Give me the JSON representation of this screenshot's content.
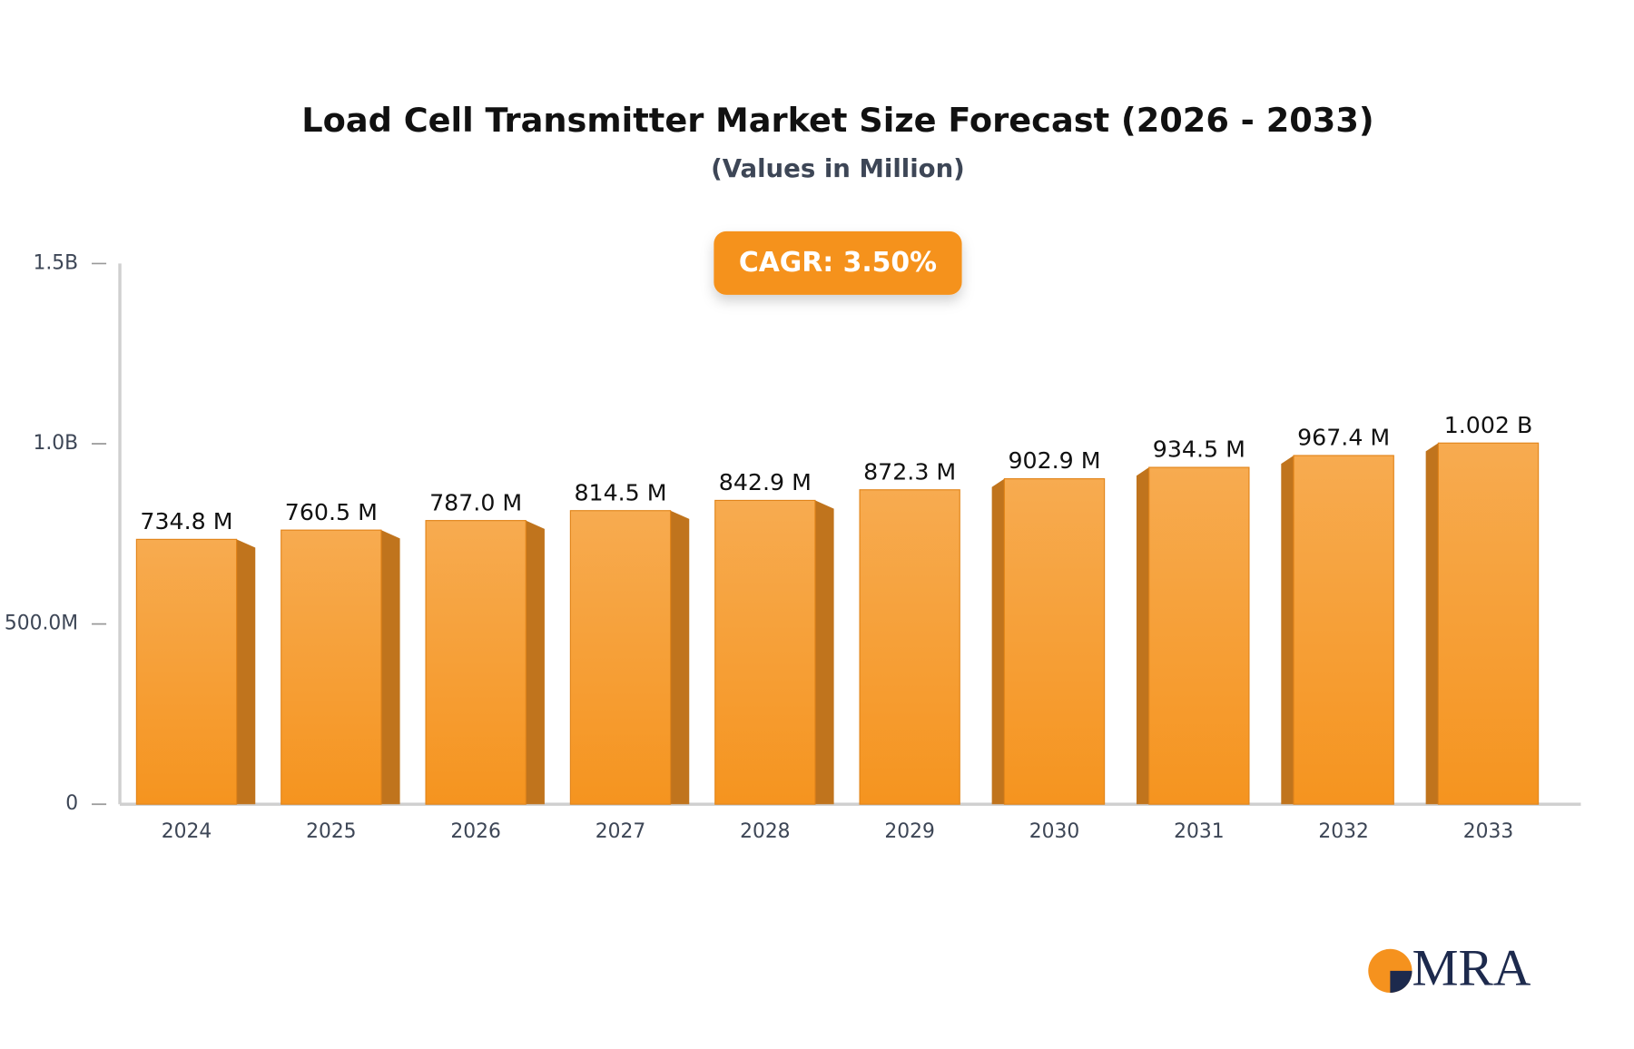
{
  "chart_data": {
    "type": "bar",
    "title": "Load Cell Transmitter Market Size Forecast (2026 - 2033)",
    "subtitle": "(Values in Million)",
    "annotation": "CAGR: 3.50%",
    "logo": "MRA",
    "categories": [
      "2024",
      "2025",
      "2026",
      "2027",
      "2028",
      "2029",
      "2030",
      "2031",
      "2032",
      "2033"
    ],
    "values": [
      734.8,
      760.5,
      787.0,
      814.5,
      842.9,
      872.3,
      902.9,
      934.5,
      967.4,
      1002
    ],
    "value_labels": [
      "734.8 M",
      "760.5 M",
      "787.0 M",
      "814.5 M",
      "842.9 M",
      "872.3 M",
      "902.9 M",
      "934.5 M",
      "967.4 M",
      "1.002 B"
    ],
    "color": "#f6a03a",
    "ylim": [
      0,
      1500
    ],
    "yticks": [
      0,
      {
        "value": 500,
        "label": "500.0M"
      },
      {
        "value": 1000,
        "label": "1.0B"
      },
      {
        "value": 1500,
        "label": "1.5B"
      }
    ],
    "grid": false
  }
}
